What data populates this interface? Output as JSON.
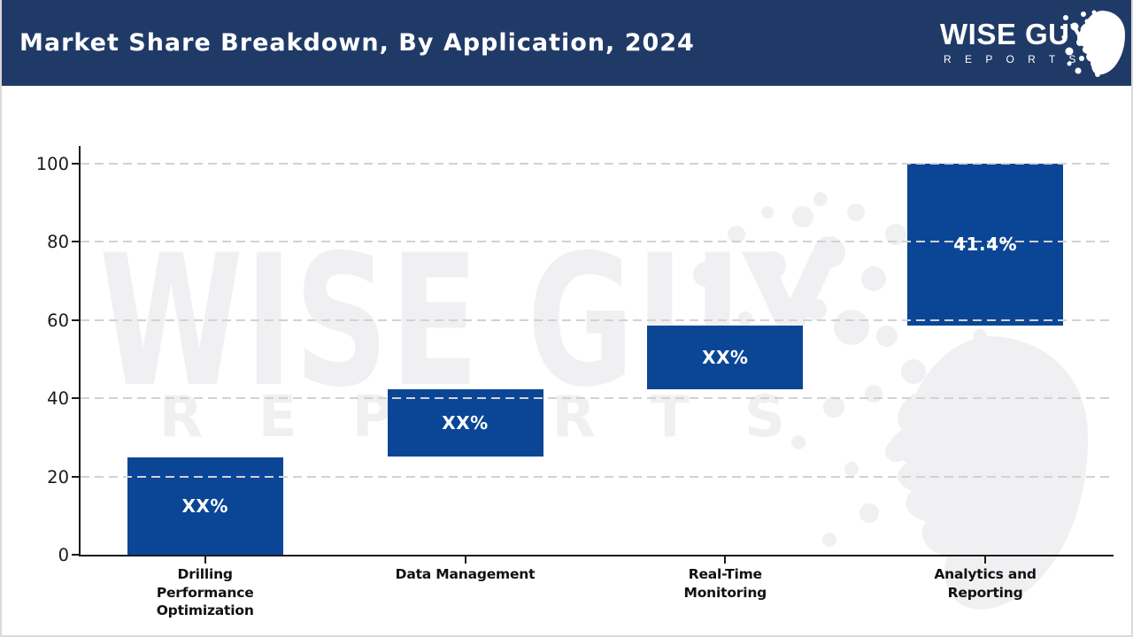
{
  "header": {
    "title": "Market Share Breakdown, By Application, 2024",
    "background": "#203a68",
    "logo": {
      "line1": "WISE GUY",
      "line2": "R E P O R T S"
    }
  },
  "watermark": {
    "line1": "WISE GUY",
    "line2": "R E P O R T S"
  },
  "chart_data": {
    "type": "bar",
    "subtype": "waterfall",
    "title": "Market Share Breakdown, By Application, 2024",
    "categories": [
      [
        "Drilling",
        "Performance",
        "Optimization"
      ],
      [
        "Data Management"
      ],
      [
        "Real-Time",
        "Monitoring"
      ],
      [
        "Analytics and",
        "Reporting"
      ]
    ],
    "segments": [
      {
        "category": "Drilling Performance Optimization",
        "base": 0,
        "value": 25.0,
        "label": "XX%"
      },
      {
        "category": "Data Management",
        "base": 25.0,
        "value": 17.3,
        "label": "XX%"
      },
      {
        "category": "Real-Time Monitoring",
        "base": 42.3,
        "value": 16.3,
        "label": "XX%"
      },
      {
        "category": "Analytics and Reporting",
        "base": 58.6,
        "value": 41.4,
        "label": "41.4%"
      }
    ],
    "yticks": [
      0,
      20,
      40,
      60,
      80,
      100
    ],
    "ylim": [
      0,
      104.5
    ],
    "grid": "horizontal-dashed",
    "grid_above_bars": true,
    "bar_color": "#0b4696",
    "bar_label_color": "#ffffff",
    "axis_color": "#1a1a1a",
    "legend": "none"
  }
}
